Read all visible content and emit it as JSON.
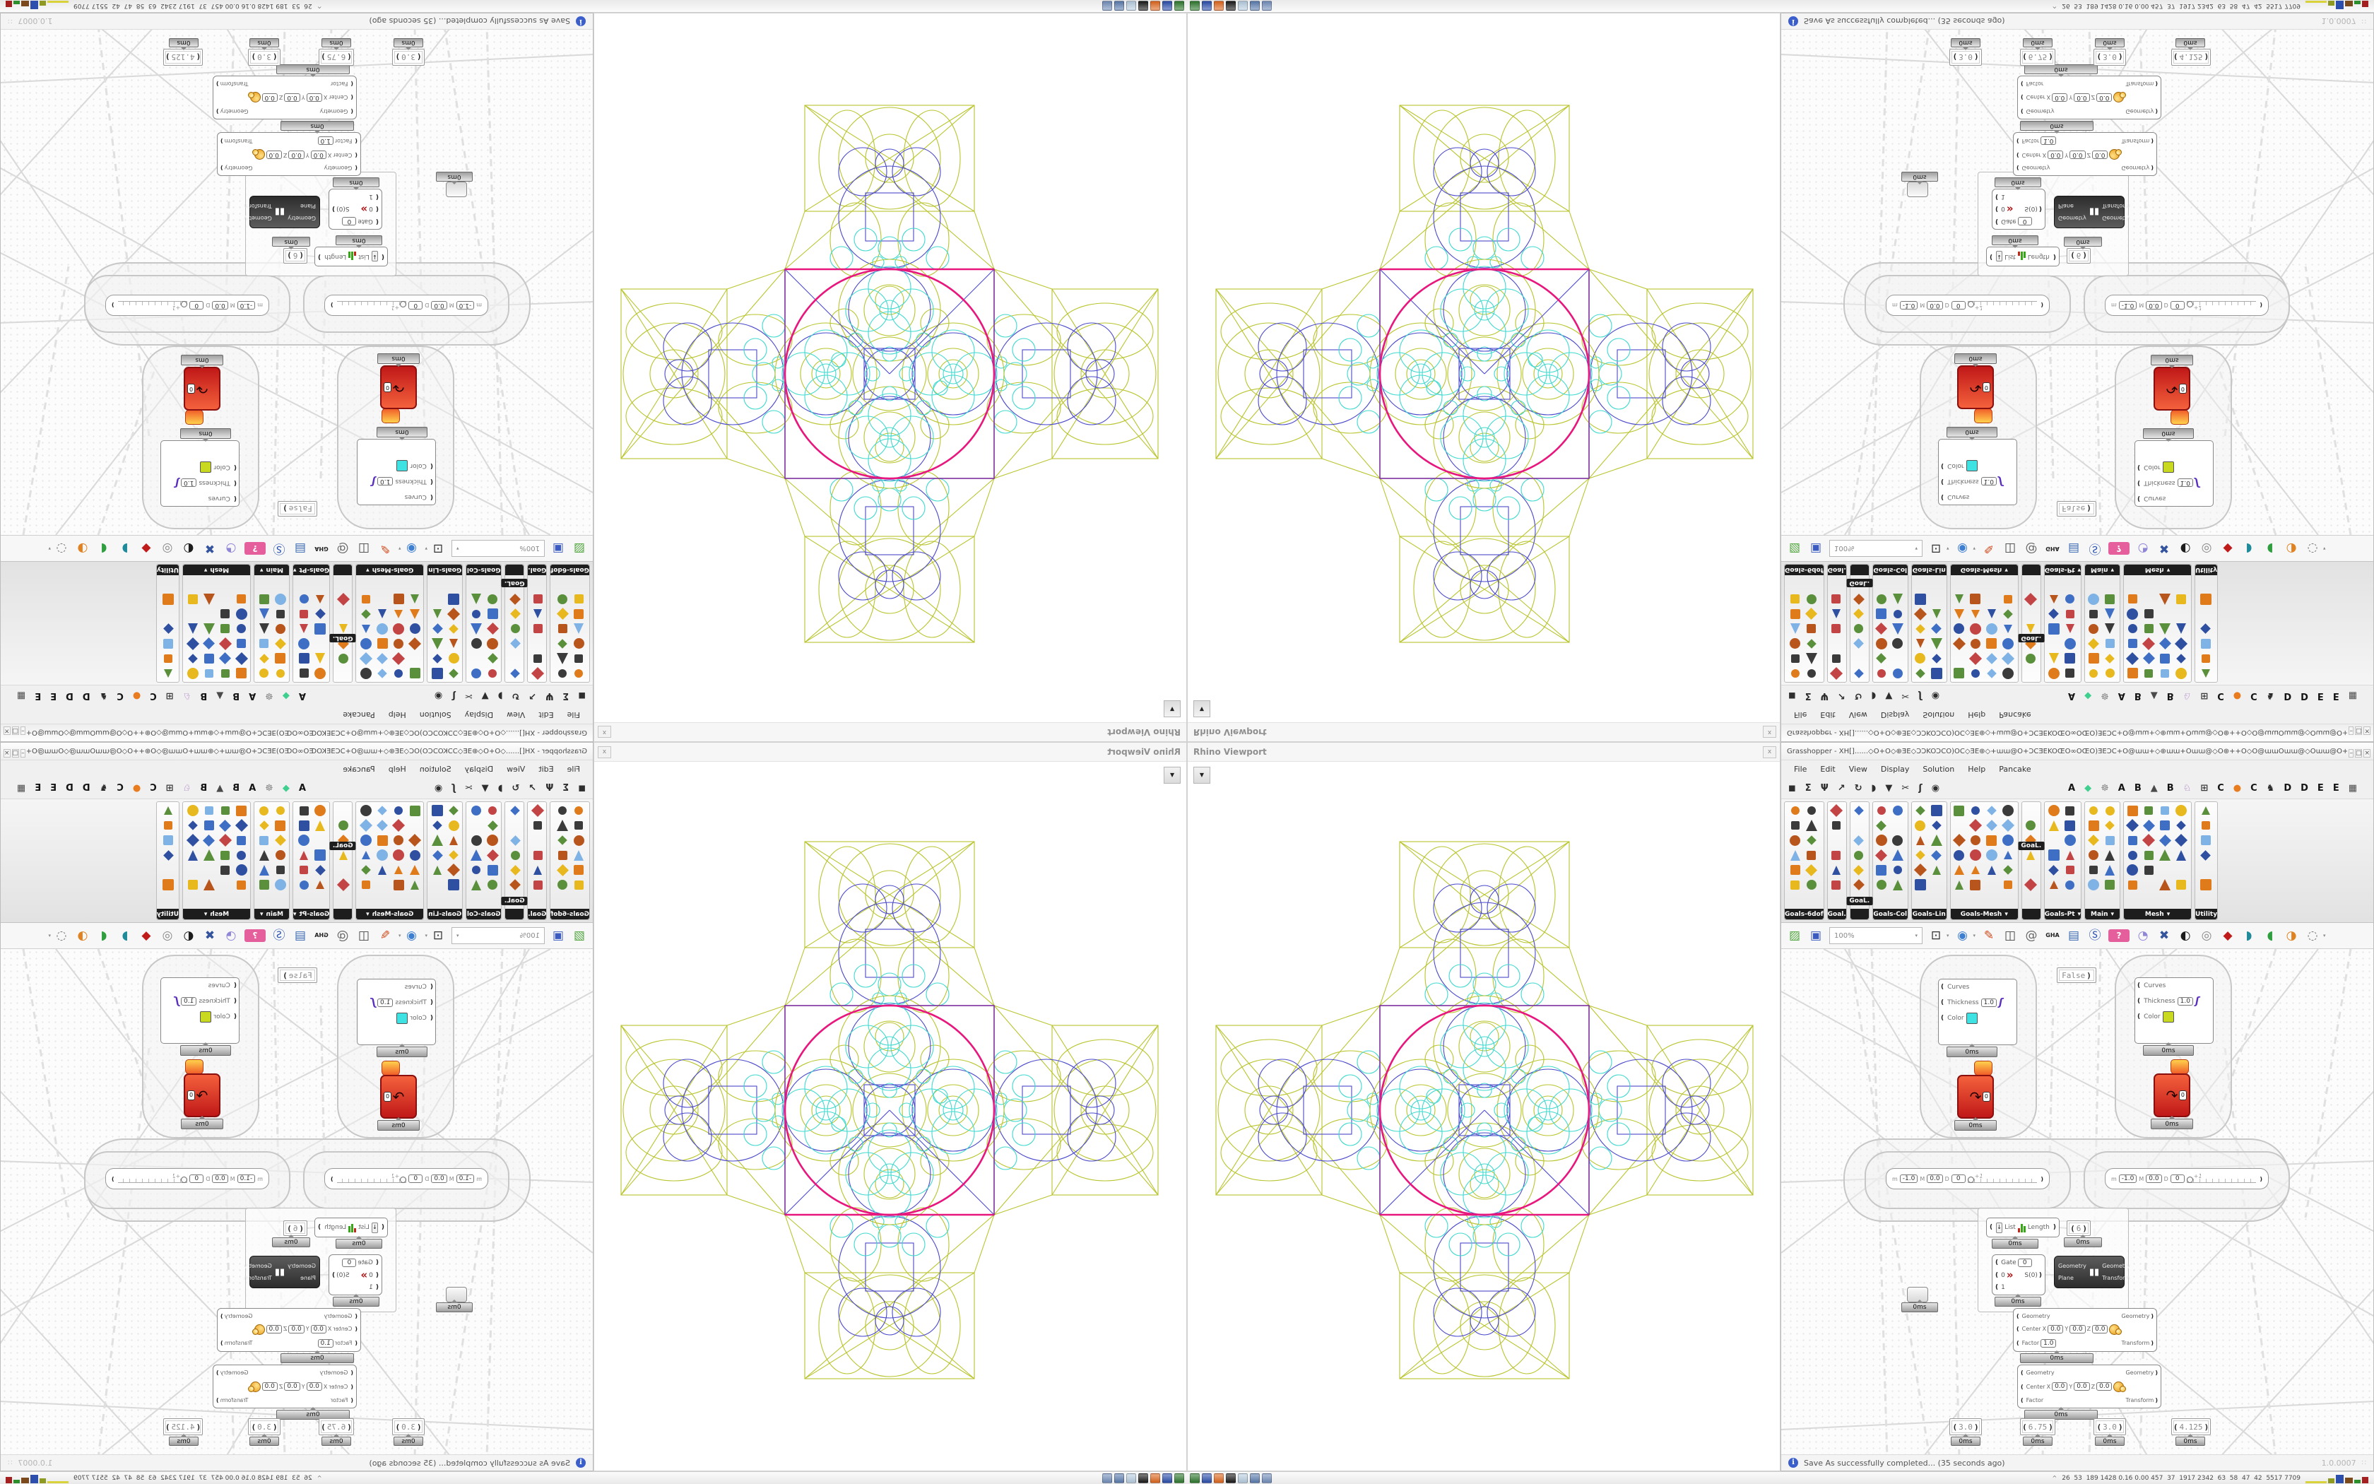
{
  "taskbar": {
    "apps": [
      {
        "name": "app-launcher-icon",
        "color": "#2f7a2f"
      },
      {
        "name": "app-floppy-icon",
        "color": "#2c4fae"
      },
      {
        "name": "app-firefox-icon",
        "color": "#e0681f"
      },
      {
        "name": "app-gimp-icon",
        "color": "#1a1a1a"
      },
      {
        "name": "app-notepad-icon",
        "color": "#b9cfe2"
      },
      {
        "name": "app-calculator-icon",
        "color": "#5c7eb0"
      },
      {
        "name": "app-script-icon",
        "color": "#7490bd"
      }
    ],
    "tray": {
      "collapse": "^",
      "numbers": "26  53  189 1428 0.16 0.00 457  37  1917 2342  63  58  47  42  5517 7709",
      "bars": [
        {
          "h": 3,
          "w": 30,
          "c": "#d9d23a"
        },
        {
          "h": 7,
          "w": 9,
          "c": "#8f9a23"
        },
        {
          "h": 12,
          "w": 11,
          "c": "#2c4fae"
        },
        {
          "h": 8,
          "w": 11,
          "c": "#7a4a1c"
        },
        {
          "h": 5,
          "w": 9,
          "c": "#2c8f2c"
        },
        {
          "h": 9,
          "w": 9,
          "c": "#a41f1f"
        }
      ]
    }
  },
  "viewport": {
    "title": "Rhino Viewport",
    "close_label": "x",
    "dropdown_glyph": "▼"
  },
  "pattern": {
    "olive": "#b9c42e",
    "blue": "#4a49cb",
    "cyan": "#3fd9cf",
    "pink": "#e8177d",
    "purple": "#7d2f9f"
  },
  "gh": {
    "title": "Grasshopper - XH[]......◇O+O◇⊕ƎE◇ƆƆKOƆCO)OC◇ƎE⊕◇+ɯɯ@O+ƆCƎEKOŒO∞OŒO)ƎEƆC+O@ɯɯ+◇⊕ɯɯ+Oɯɯ@◇O⊕++O◇O@ɯɯOɯɯ@◇Oɯɯ@O+ƆCƎEKOŒO∞O...",
    "window_buttons": [
      {
        "name": "minimize-button",
        "g": "–"
      },
      {
        "name": "maximize-button",
        "g": "□"
      },
      {
        "name": "close-button",
        "g": "×"
      }
    ],
    "menus": [
      "File",
      "Edit",
      "View",
      "Display",
      "Solution",
      "Help",
      "Pancake"
    ],
    "tabs": [
      {
        "g": "◼",
        "c": "#2e2e2e"
      },
      {
        "g": "Σ",
        "c": "#2e2e2e"
      },
      {
        "g": "Ψ",
        "c": "#2e2e2e"
      },
      {
        "g": "↗",
        "c": "#2e2e2e"
      },
      {
        "g": "↻",
        "c": "#2e2e2e"
      },
      {
        "g": "◗",
        "c": "#2e2e2e"
      },
      {
        "g": "▼",
        "c": "#2e2e2e"
      },
      {
        "g": "✂",
        "c": "#2e2e2e"
      },
      {
        "g": "ʃ",
        "c": "#2e2e2e"
      },
      {
        "g": "◉",
        "c": "#2e2e2e"
      },
      {
        "g": "A",
        "c": "#141414"
      },
      {
        "g": "◆",
        "c": "#3fcf8f"
      },
      {
        "g": "☸",
        "c": "#8a8a8a"
      },
      {
        "g": "A",
        "c": "#141414"
      },
      {
        "g": "B",
        "c": "#141414"
      },
      {
        "g": "▲",
        "c": "#4a4a4a"
      },
      {
        "g": "B",
        "c": "#141414"
      },
      {
        "g": "♘",
        "c": "#9a5fb5"
      },
      {
        "g": "⊞",
        "c": "#3a3a3a"
      },
      {
        "g": "C",
        "c": "#141414"
      },
      {
        "g": "●",
        "c": "#e87c1e"
      },
      {
        "g": "C",
        "c": "#141414"
      },
      {
        "g": "♞",
        "c": "#2a2a2a"
      },
      {
        "g": "D",
        "c": "#141414"
      },
      {
        "g": "D",
        "c": "#141414"
      },
      {
        "g": "E",
        "c": "#141414"
      },
      {
        "g": "E",
        "c": "#141414"
      },
      {
        "g": "▦",
        "c": "#4a4a4a"
      }
    ],
    "ribbon": {
      "groups": [
        {
          "label": "Goals-6dof",
          "cols": 2,
          "arrow": false,
          "float": ""
        },
        {
          "label": "Goal.",
          "cols": 1,
          "arrow": false,
          "float": ""
        },
        {
          "label": "",
          "cols": 1,
          "arrow": false,
          "float": "GoaL.",
          "float_pos": "bottom"
        },
        {
          "label": "Goals-Col",
          "cols": 2,
          "arrow": false,
          "float": ""
        },
        {
          "label": "Goals-Lin",
          "cols": 2,
          "arrow": false,
          "float": ""
        },
        {
          "label": "Goals-Mesh",
          "cols": 4,
          "arrow": true,
          "float": ""
        },
        {
          "label": "",
          "cols": 1,
          "arrow": false,
          "float": "GoaL.",
          "float_pos": "mid"
        },
        {
          "label": "Goals-Pt",
          "cols": 2,
          "arrow": true,
          "float": ""
        },
        {
          "label": "Main",
          "cols": 2,
          "arrow": true,
          "float": ""
        },
        {
          "label": "Mesh",
          "cols": 4,
          "arrow": true,
          "float": ""
        },
        {
          "label": "Utility",
          "cols": 1,
          "arrow": false,
          "float": ""
        }
      ],
      "arrow_glyph": "▾"
    },
    "toolbar": {
      "zoom_level": "100%",
      "caret": "▾",
      "icons": [
        {
          "n": "open-file-icon",
          "g": "▨",
          "c": "#4ea63b"
        },
        {
          "n": "save-file-icon",
          "g": "▣",
          "c": "#3b5bbf"
        },
        {
          "n": "zoom-extents-icon",
          "g": "⊡",
          "c": "#333333",
          "caret": true
        },
        {
          "n": "preview-eye-icon",
          "g": "◉",
          "c": "#3f7fd1",
          "caret": true
        },
        {
          "n": "sketch-pen-icon",
          "g": "✎",
          "c": "#d2491a"
        },
        {
          "n": "box-display-icon",
          "g": "◫",
          "c": "#444444"
        },
        {
          "n": "publish-at-icon",
          "g": "@",
          "c": "#666666"
        },
        {
          "n": "gha-assembly-icon",
          "g": "GHA",
          "c": "#222222",
          "text": true
        },
        {
          "n": "document-preview-icon",
          "g": "▤",
          "c": "#3a6ab2"
        },
        {
          "n": "search-s-icon",
          "g": "Ⓢ",
          "c": "#2f55b0"
        },
        {
          "n": "package-help-icon",
          "g": "?",
          "c": "#ffffff",
          "bg": "#e55f9c"
        },
        {
          "n": "balloon-icon",
          "g": "◔",
          "c": "#8f86d8"
        },
        {
          "n": "dna-cross-icon",
          "g": "✖",
          "c": "#34549e"
        },
        {
          "n": "circles-bw-icon",
          "g": "◐",
          "c": "#1c1c1c"
        },
        {
          "n": "rings-icon",
          "g": "◎",
          "c": "#8a8a8a"
        },
        {
          "n": "gem-red-icon",
          "g": "◆",
          "c": "#bf1b1b"
        },
        {
          "n": "blob-teal-icon",
          "g": "◗",
          "c": "#1f8a99"
        },
        {
          "n": "blob-green-icon",
          "g": "◖",
          "c": "#2f9e3f"
        },
        {
          "n": "sphere-orange-icon",
          "g": "◑",
          "c": "#e0821f"
        },
        {
          "n": "selection-lasso-icon",
          "g": "◌",
          "c": "#777777",
          "caret": true
        }
      ]
    },
    "status": {
      "message": "Save As successfully completed... (35 seconds ago)",
      "version": "1.0.0007",
      "grip": "∷"
    },
    "canvas": {
      "time_label": "0ms",
      "false_panel": "False",
      "length_value_panel": "6",
      "value_panels": [
        "3.0",
        "6.75",
        "3.0",
        "4.125"
      ],
      "preview_left": {
        "curves": "Curves",
        "thickness": "Thickness",
        "thickness_value": "1.0",
        "color": "Color",
        "swatch": "#3fe2e2"
      },
      "preview_right": {
        "curves": "Curves",
        "thickness": "Thickness",
        "thickness_value": "1.0",
        "color": "Color",
        "swatch": "#c9d91f"
      },
      "slider": {
        "min_label": "m",
        "min_value": "-1.0",
        "max_label": "M",
        "max_value": "0.0",
        "digits_label": "D",
        "digits_value": "0",
        "knob_label": "+1"
      },
      "list_length": {
        "in_label": "List",
        "out_label": "Length"
      },
      "stream_filter": {
        "gate_label": "Gate",
        "gate_value": "0",
        "input_a": "0",
        "input_b": "1",
        "symbol": "»",
        "out_label": "S(0)"
      },
      "orient": {
        "in_geometry": "Geometry",
        "in_plane": "Plane",
        "icon": "▮▮",
        "down_glyph": "↓",
        "out_geometry": "Geometry",
        "out_transform": "Transform"
      },
      "scale": {
        "in_geometry": "Geometry",
        "center_label": "Center",
        "x_label": "X",
        "y_label": "Y",
        "z_label": "Z",
        "coord_value": "0.0",
        "factor_label": "Factor",
        "factor_value": "1.0",
        "out_geometry": "Geometry",
        "out_transform": "Transform"
      },
      "red_component": {
        "glyph": "↷",
        "badge": "0"
      }
    }
  }
}
